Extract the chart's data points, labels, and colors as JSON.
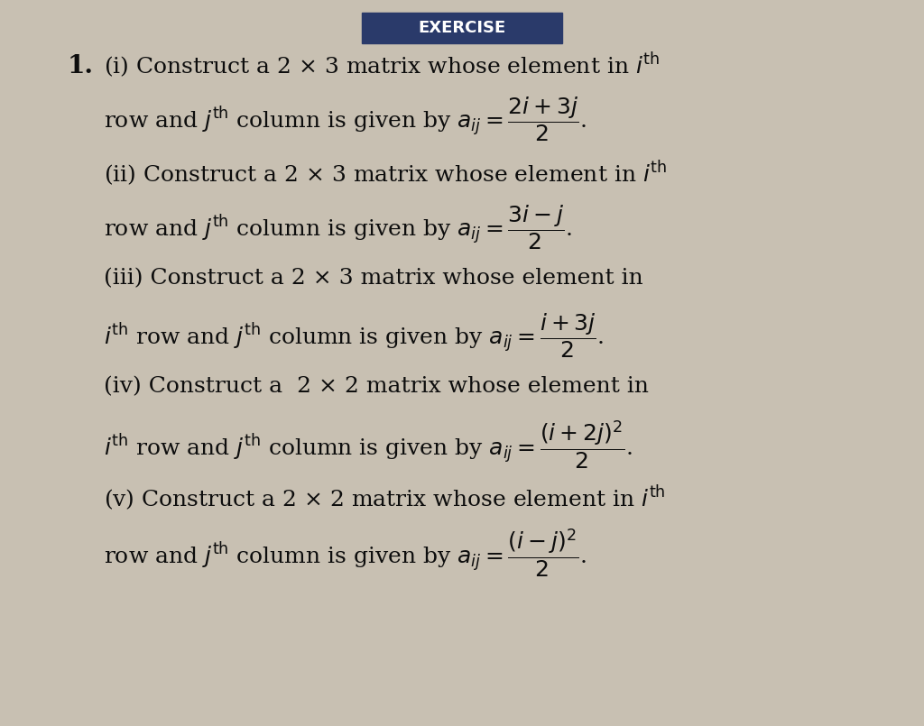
{
  "background_color": "#c8c0b2",
  "page_color": "#ddd8cc",
  "title_box_color": "#2a3a6a",
  "title_box_text": "EXERCISE",
  "title_box_text_color": "#ffffff",
  "text_color": "#0d0d0d",
  "number_label": "1.",
  "parts": [
    {
      "label": "(i)",
      "text1": "Construct a 2 × 3 matrix whose element in $i^{\\mathrm{th}}$",
      "text2": "row and $j^{\\mathrm{th}}$ column is given by $a_{ij} = \\dfrac{2i+3j}{2}$."
    },
    {
      "label": "(ii)",
      "text1": "Construct a 2 × 3 matrix whose element in $i^{\\mathrm{th}}$",
      "text2": "row and $j^{\\mathrm{th}}$ column is given by $a_{ij} = \\dfrac{3i-j}{2}$."
    },
    {
      "label": "(iii)",
      "text1": "Construct a 2 × 3 matrix whose element in",
      "text2": "$i^{\\mathrm{th}}$ row and $j^{\\mathrm{th}}$ column is given by $a_{ij} = \\dfrac{i+3j}{2}$."
    },
    {
      "label": "(iv)",
      "text1": "Construct a  2 × 2 matrix whose element in",
      "text2": "$i^{\\mathrm{th}}$ row and $j^{\\mathrm{th}}$ column is given by $a_{ij} = \\dfrac{(i+2j)^2}{2}$."
    },
    {
      "label": "(v)",
      "text1": "Construct a 2 × 2 matrix whose element in $i^{\\mathrm{th}}$",
      "text2": "row and $j^{\\mathrm{th}}$ column is given by $a_{ij} = \\dfrac{(i-j)^2}{2}$."
    }
  ],
  "figsize": [
    10.24,
    8.05
  ],
  "dpi": 100
}
